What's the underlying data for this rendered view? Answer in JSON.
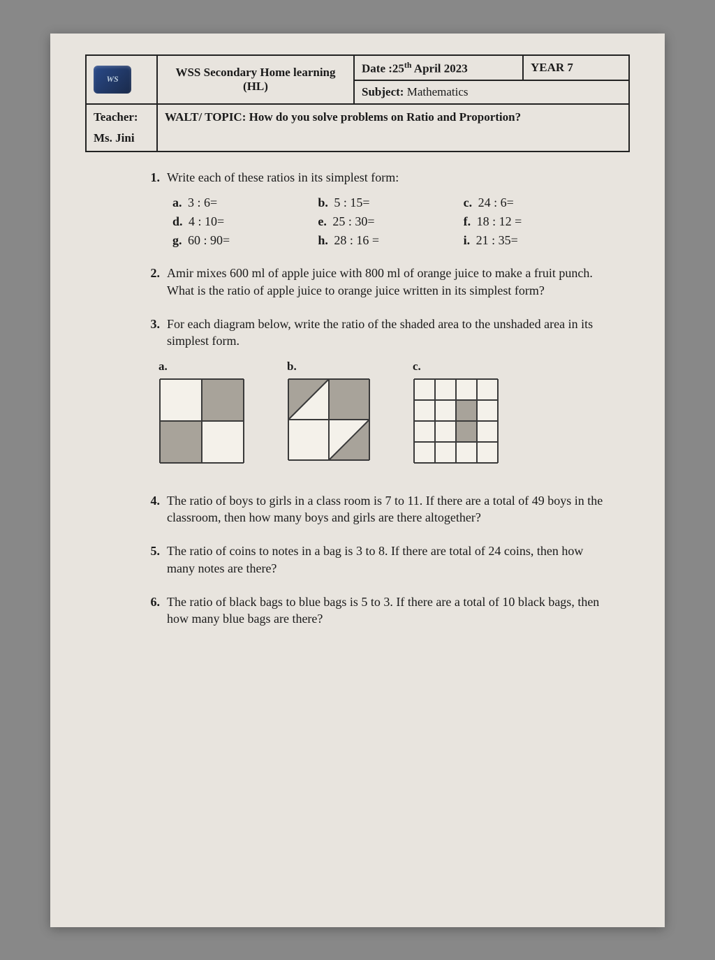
{
  "header": {
    "logo_text": "WS",
    "school": "WSS Secondary Home learning (HL)",
    "date_label": "Date :",
    "date_day": "25",
    "date_sup": "th",
    "date_rest": " April 2023",
    "year": "YEAR 7",
    "subject_label": "Subject: ",
    "subject": "Mathematics",
    "teacher_label": "Teacher:",
    "teacher": "Ms. Jini",
    "topic_label": "WALT/ TOPIC:  ",
    "topic": "How do you solve problems on Ratio and Proportion?"
  },
  "q1": {
    "num": "1.",
    "text": "Write each of these ratios in its simplest form:",
    "items": [
      {
        "l": "a.",
        "t": "3 : 6="
      },
      {
        "l": "b.",
        "t": "5 : 15="
      },
      {
        "l": "c.",
        "t": "24 : 6="
      },
      {
        "l": "d.",
        "t": "4 : 10="
      },
      {
        "l": "e.",
        "t": "25 : 30="
      },
      {
        "l": "f.",
        "t": "18 : 12 ="
      },
      {
        "l": "g.",
        "t": "60 : 90="
      },
      {
        "l": "h.",
        "t": "28 : 16 ="
      },
      {
        "l": "i.",
        "t": "21 : 35="
      }
    ]
  },
  "q2": {
    "num": "2.",
    "text": "Amir mixes 600 ml of apple juice with 800 ml of orange juice to make a fruit punch. What is the ratio of apple juice to orange juice written in its simplest form?"
  },
  "q3": {
    "num": "3.",
    "text": "For each diagram below, write the ratio of the shaded area to the unshaded area in its simplest form.",
    "labels": {
      "a": "a.",
      "b": "b.",
      "c": "c."
    },
    "dia_a": {
      "type": "grid",
      "rows": 2,
      "cols": 2,
      "cell": 60,
      "stroke": "#3a3a3a",
      "stroke_w": 2,
      "fill": "#a8a39a",
      "bg": "#f4f1ea",
      "shaded_cells": [
        [
          0,
          1
        ],
        [
          1,
          0
        ]
      ]
    },
    "dia_b": {
      "type": "grid-tri",
      "rows": 2,
      "cols": 2,
      "cell": 58,
      "stroke": "#3a3a3a",
      "stroke_w": 2,
      "fill": "#a8a39a",
      "bg": "#f4f1ea",
      "shaded_tris": [
        {
          "r": 0,
          "c": 0,
          "tri": "upper-left"
        },
        {
          "r": 1,
          "c": 1,
          "tri": "lower-right"
        }
      ],
      "full_shaded": [
        [
          0,
          1
        ]
      ]
    },
    "dia_c": {
      "type": "grid",
      "rows": 4,
      "cols": 4,
      "cell": 30,
      "stroke": "#3a3a3a",
      "stroke_w": 2,
      "fill": "#a8a39a",
      "bg": "#f4f1ea",
      "shaded_cells": [
        [
          1,
          2
        ],
        [
          2,
          2
        ]
      ]
    }
  },
  "q4": {
    "num": "4.",
    "text": "The ratio of boys to girls in a class room is 7 to 11. If there are a total of 49 boys in the classroom, then how many boys and girls are there altogether?"
  },
  "q5": {
    "num": "5.",
    "text": "The ratio of coins to notes in a bag is 3 to 8. If there are total of 24 coins, then how many notes are there?"
  },
  "q6": {
    "num": "6.",
    "text": "The ratio of black bags to blue bags is 5 to 3. If there are a total of 10 black bags, then how many blue bags are there?"
  }
}
